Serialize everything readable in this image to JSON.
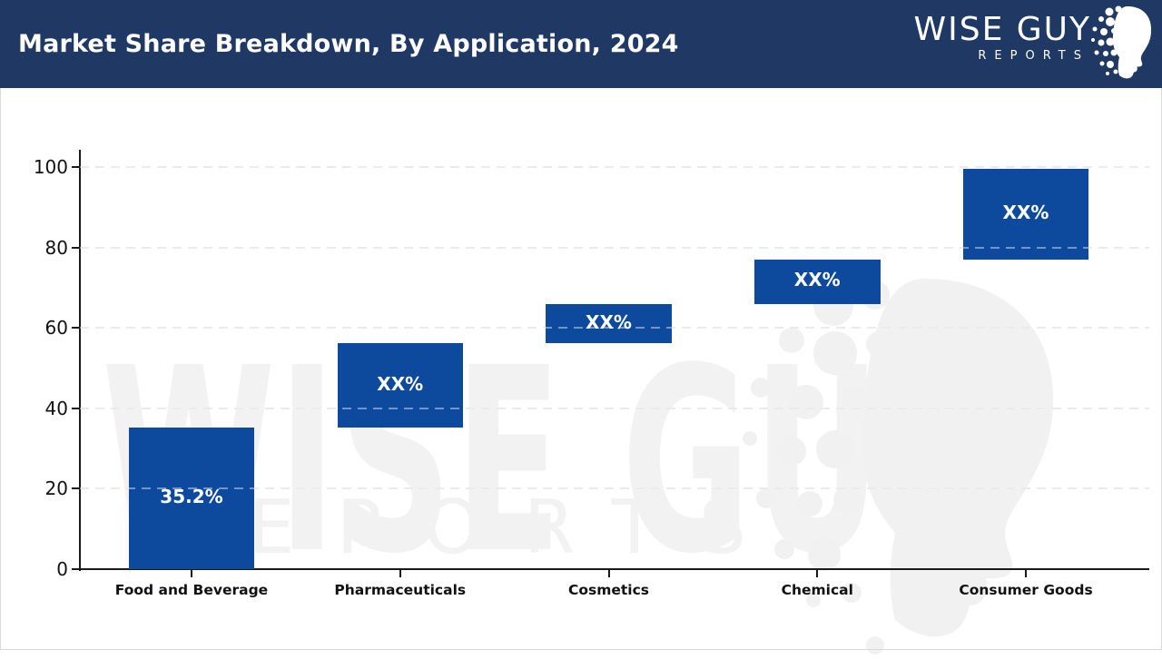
{
  "header": {
    "title": "Market Share Breakdown, By Application, 2024",
    "bg_color": "#1f3864",
    "logo": {
      "name": "WISE GUY",
      "sub": "REPORTS"
    }
  },
  "watermark": {
    "big_text": "WISE GUY",
    "sub_text": "REPORTS"
  },
  "chart_data": {
    "type": "bar",
    "subtype": "floating-waterfall",
    "title": "Market Share Breakdown, By Application, 2024",
    "unit": "%",
    "categories": [
      "Food and Beverage",
      "Pharmaceuticals",
      "Cosmetics",
      "Chemical",
      "Consumer Goods"
    ],
    "segments": [
      {
        "category": "Food and Beverage",
        "start": 0,
        "end": 35.2,
        "label": "35.2%"
      },
      {
        "category": "Pharmaceuticals",
        "start": 35.2,
        "end": 56.2,
        "label": "XX%"
      },
      {
        "category": "Cosmetics",
        "start": 56.2,
        "end": 66.0,
        "label": "XX%"
      },
      {
        "category": "Chemical",
        "start": 66.0,
        "end": 77.0,
        "label": "XX%"
      },
      {
        "category": "Consumer Goods",
        "start": 77.0,
        "end": 99.6,
        "label": "XX%"
      }
    ],
    "ylim": [
      0,
      100
    ],
    "yticks": [
      0,
      20,
      40,
      60,
      80,
      100
    ],
    "grid": "horizontal-dashed",
    "legend": "none",
    "bar_color": "#0d4a9e",
    "bar_label_color": "#ffffff",
    "axis_color": "#1a1a1a",
    "gridline_color": "#dcdcdc"
  }
}
